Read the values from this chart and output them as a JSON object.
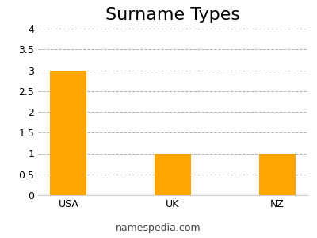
{
  "title": "Surname Types",
  "categories": [
    "USA",
    "UK",
    "NZ"
  ],
  "values": [
    3,
    1,
    1
  ],
  "bar_color": "#FFA500",
  "ylim": [
    0,
    4
  ],
  "yticks": [
    0,
    0.5,
    1,
    1.5,
    2,
    2.5,
    3,
    3.5,
    4
  ],
  "grid_color": "#b0b0b0",
  "background_color": "#ffffff",
  "footer_text": "namespedia.com",
  "title_fontsize": 16,
  "tick_fontsize": 9,
  "footer_fontsize": 9,
  "bar_width": 0.35
}
